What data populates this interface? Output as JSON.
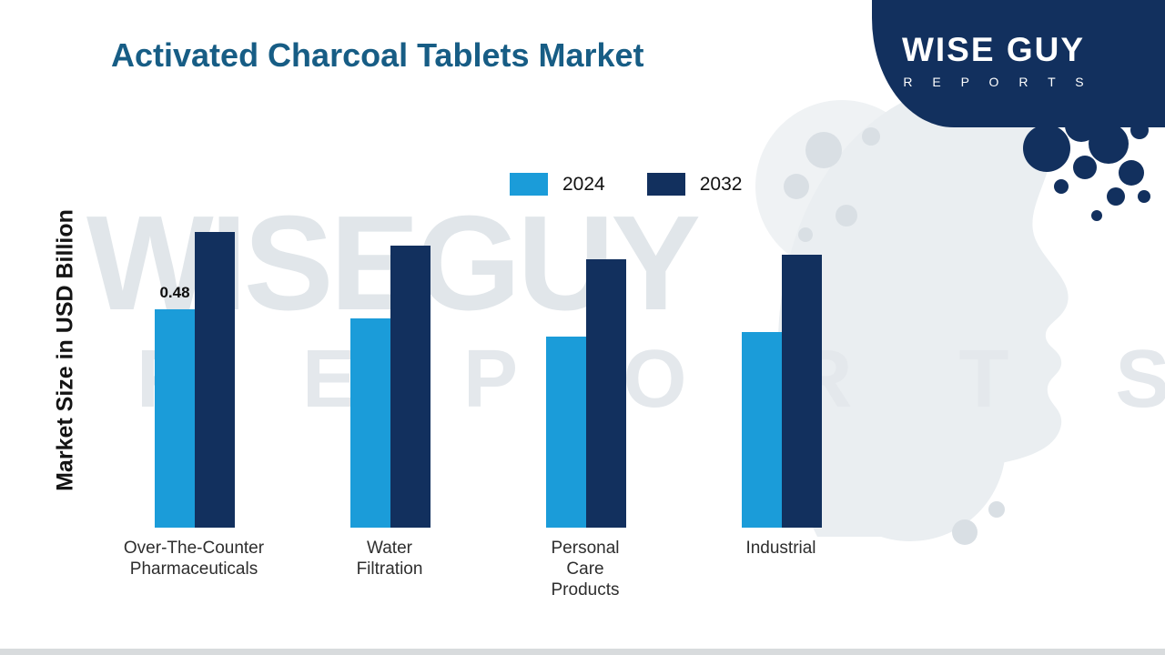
{
  "title": "Activated Charcoal Tablets Market",
  "logo": {
    "line1": "WISE GUY",
    "line2": "R E P O R T S"
  },
  "watermark": {
    "line1": "WISEGUY",
    "line2": "R E P O R T S"
  },
  "y_axis_label": "Market Size in USD Billion",
  "legend": [
    {
      "label": "2024",
      "color": "#1b9cd9"
    },
    {
      "label": "2032",
      "color": "#12305e"
    }
  ],
  "colors": {
    "title": "#175d85",
    "series_2024": "#1b9cd9",
    "series_2032": "#12305e",
    "navy_block": "#12305e",
    "watermark": "#e1e6ea",
    "bottom_strip": "#d8dbdd"
  },
  "chart_data": {
    "type": "bar",
    "title": "Activated Charcoal Tablets Market",
    "xlabel": "",
    "ylabel": "Market Size in USD Billion",
    "unit": "USD Billion",
    "categories": [
      "Over-The-Counter\nPharmaceuticals",
      "Water\nFiltration",
      "Personal\nCare\nProducts",
      "Industrial"
    ],
    "series": [
      {
        "name": "2024",
        "color": "#1b9cd9",
        "values": [
          0.48,
          0.46,
          0.42,
          0.43
        ]
      },
      {
        "name": "2032",
        "color": "#12305e",
        "values": [
          0.65,
          0.62,
          0.59,
          0.6
        ]
      }
    ],
    "annotations": [
      {
        "series": "2024",
        "category_index": 0,
        "text": "0.48"
      }
    ],
    "ylim": [
      0,
      0.76
    ],
    "grid": false,
    "legend_position": "top"
  }
}
